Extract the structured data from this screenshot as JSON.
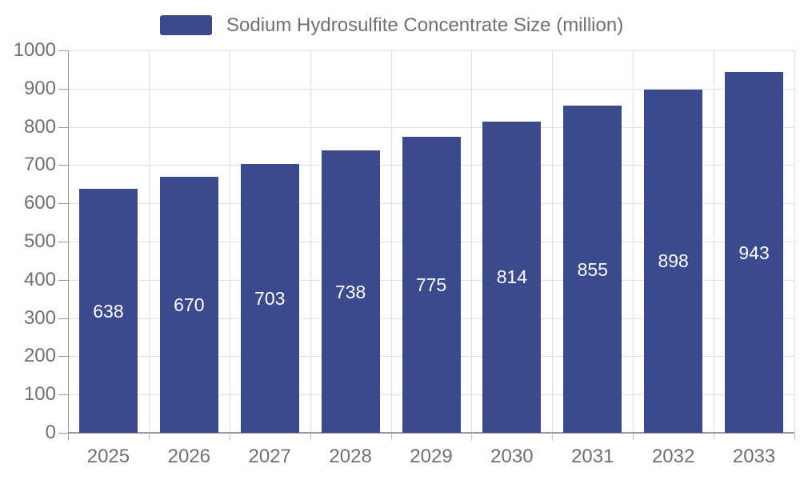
{
  "chart": {
    "legend": {
      "label": "Sodium Hydrosulfite Concentrate Size (million)"
    },
    "colors": {
      "bar": "#3A4A8C",
      "grid": "#E0E0E0",
      "axis": "#999999",
      "minor_tick": "#BFBFBF",
      "text": "#6E7079",
      "value_label": "#FFFFFF",
      "background": "#FFFFFF"
    }
  },
  "chart_data": {
    "type": "bar",
    "title": "",
    "series_name": "Sodium Hydrosulfite Concentrate Size (million)",
    "categories": [
      "2025",
      "2026",
      "2027",
      "2028",
      "2029",
      "2030",
      "2031",
      "2032",
      "2033"
    ],
    "values": [
      638,
      670,
      703,
      738,
      775,
      814,
      855,
      898,
      943
    ],
    "xlabel": "",
    "ylabel": "",
    "ylim": [
      0,
      1000
    ],
    "ytick_interval": 100,
    "ytick_labels": [
      "0",
      "100",
      "200",
      "300",
      "400",
      "500",
      "600",
      "700",
      "800",
      "900",
      "1000"
    ],
    "grid": true,
    "legend_position": "top-center",
    "value_label_position": "inside-center"
  }
}
